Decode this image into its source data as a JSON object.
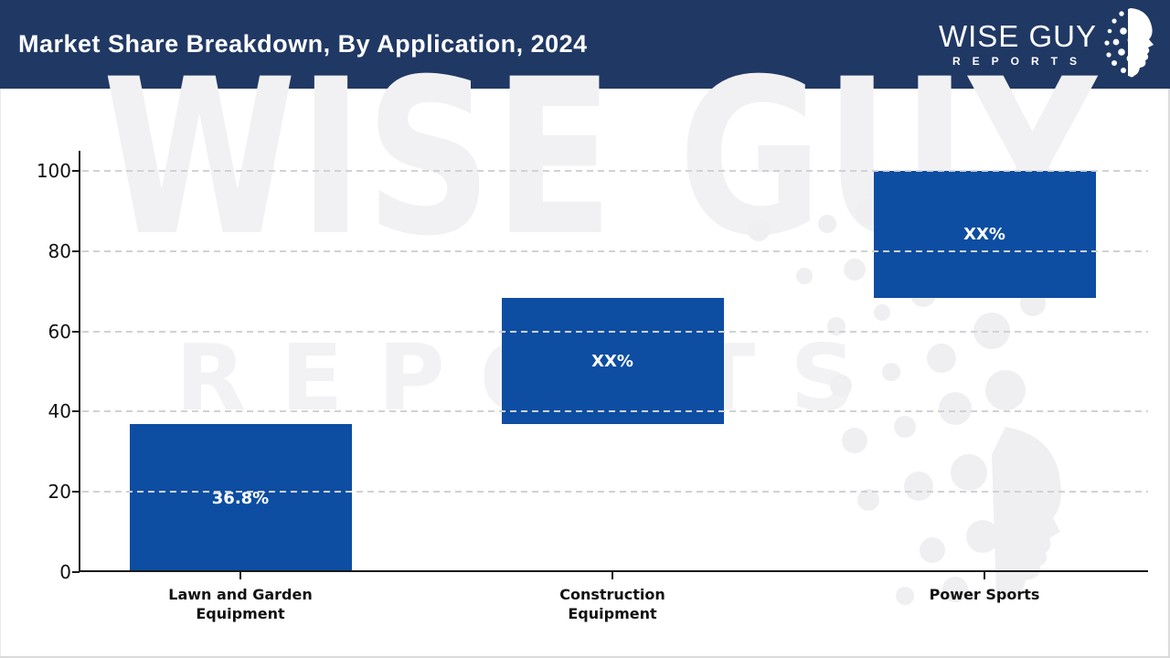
{
  "header": {
    "title": "Market Share Breakdown, By Application, 2024",
    "bg_color": "#203864",
    "logo": {
      "line1": "WISE GUY",
      "line2": "REPORTS"
    }
  },
  "watermark": {
    "line1": "WISE GUY",
    "line2": "REPORTS"
  },
  "chart_data": {
    "type": "bar",
    "subtype": "waterfall-breakdown",
    "title": "Market Share Breakdown, By Application, 2024",
    "categories": [
      "Lawn and Garden Equipment",
      "Construction Equipment",
      "Power Sports"
    ],
    "category_lines": [
      [
        "Lawn and Garden",
        "Equipment"
      ],
      [
        "Construction",
        "Equipment"
      ],
      [
        "Power Sports"
      ]
    ],
    "segments": [
      {
        "label": "Lawn and Garden Equipment",
        "start": 0,
        "end": 36.8,
        "value_label": "36.8%"
      },
      {
        "label": "Construction Equipment",
        "start": 36.8,
        "end": 68.4,
        "value_label": "XX%"
      },
      {
        "label": "Power Sports",
        "start": 68.4,
        "end": 100,
        "value_label": "XX%"
      }
    ],
    "ylim": [
      0,
      100
    ],
    "yticks": [
      0,
      20,
      40,
      60,
      80,
      100
    ],
    "grid": "horizontal dashed, drawn above bars",
    "bar_color": "#0d4da2",
    "xlabel": "",
    "ylabel": ""
  }
}
